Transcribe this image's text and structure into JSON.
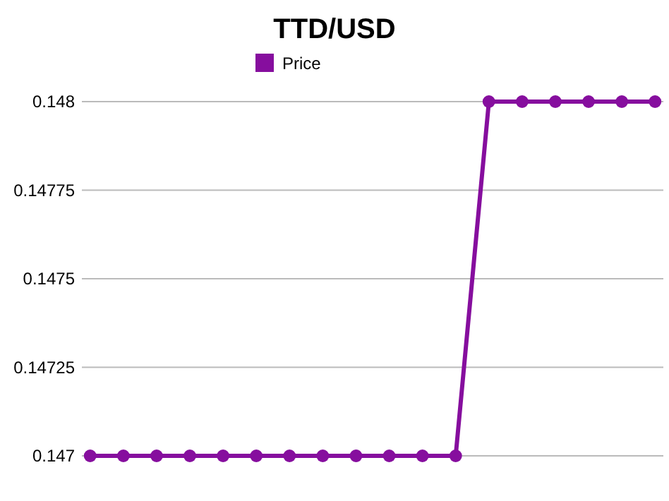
{
  "chart_data": {
    "type": "line",
    "title": "TTD/USD",
    "categories": [
      null,
      null,
      null,
      null,
      null,
      null,
      null,
      null,
      null,
      null,
      null,
      null,
      null,
      null,
      null,
      null,
      null,
      null
    ],
    "series": [
      {
        "name": "Price",
        "color": "#860e9e",
        "values": [
          0.147,
          0.147,
          0.147,
          0.147,
          0.147,
          0.147,
          0.147,
          0.147,
          0.147,
          0.147,
          0.147,
          0.147,
          0.148,
          0.148,
          0.148,
          0.148,
          0.148,
          0.148
        ]
      }
    ],
    "ylim": [
      0.147,
      0.148
    ],
    "yticks": [
      0.147,
      0.14725,
      0.1475,
      0.14775,
      0.148
    ],
    "grid": "y",
    "legend": "top",
    "marker": "circle",
    "line_style": "solid"
  }
}
